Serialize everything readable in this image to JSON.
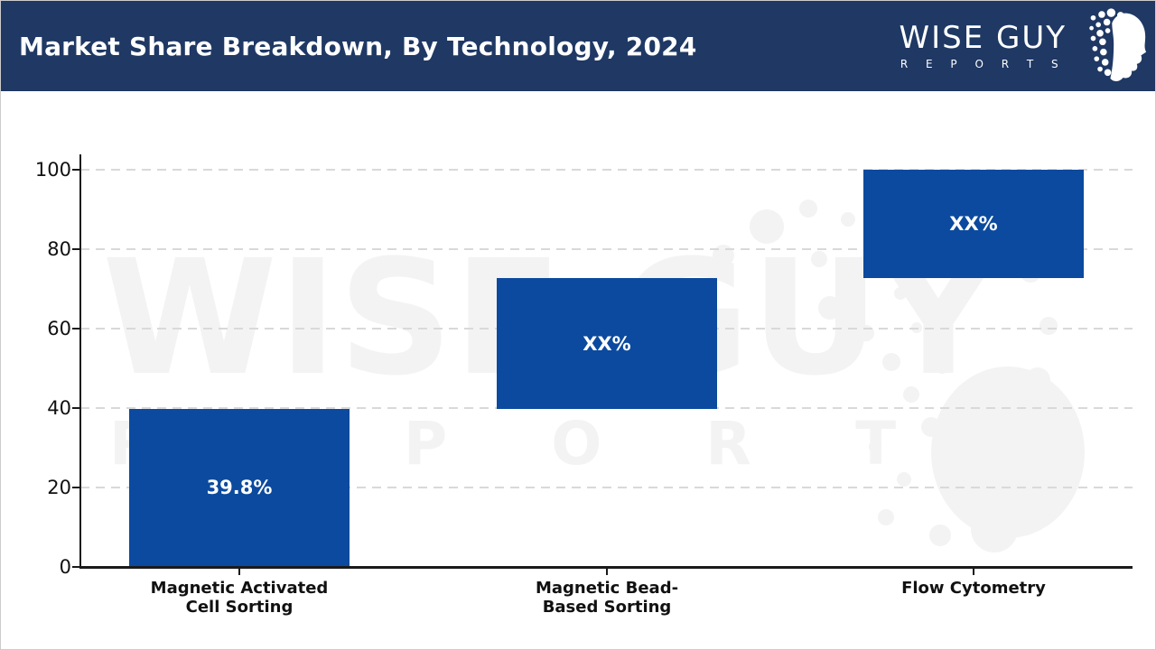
{
  "header": {
    "title": "Market Share Breakdown, By Technology, 2024",
    "logo": {
      "wordmark": "WISE GUY",
      "subtext": "R E P O R T S"
    }
  },
  "watermark": {
    "line1": "WISE GUY",
    "line2": "R E P O R T S"
  },
  "colors": {
    "header_bg": "#1f3864",
    "header_text": "#ffffff",
    "bar": "#0b4a9e",
    "bar_label": "#ffffff",
    "grid": "#d9d9d9",
    "axis": "#1a1a1a",
    "tick_label": "#111111",
    "watermark": "#f3f3f3",
    "border": "#cccccc",
    "background": "#ffffff"
  },
  "chart_data": {
    "type": "bar",
    "subtype": "waterfall",
    "title": "Market Share Breakdown, By Technology, 2024",
    "categories": [
      [
        "Magnetic Activated",
        "Cell Sorting"
      ],
      [
        "Magnetic Bead-",
        "Based Sorting"
      ],
      [
        "Flow Cytometry"
      ]
    ],
    "series": [
      {
        "name": "Market share (%)",
        "segments": [
          {
            "category": "Magnetic Activated Cell Sorting",
            "start": 0,
            "end": 39.8,
            "label": "39.8%"
          },
          {
            "category": "Magnetic Bead-Based Sorting",
            "start": 39.8,
            "end": 72.7,
            "label": "XX%"
          },
          {
            "category": "Flow Cytometry",
            "start": 72.7,
            "end": 100,
            "label": "XX%"
          }
        ]
      }
    ],
    "ylim": [
      0,
      100
    ],
    "yticks": [
      0,
      20,
      40,
      60,
      80,
      100
    ],
    "grid": "horizontal-dashed",
    "legend": "none"
  }
}
